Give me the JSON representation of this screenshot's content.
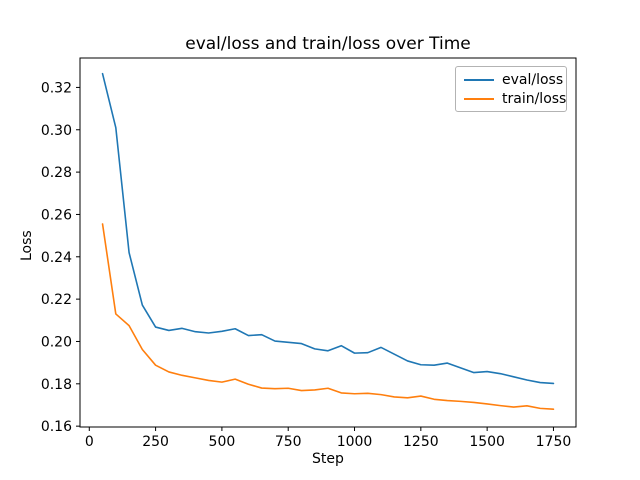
{
  "window": {
    "background": "#ffffff"
  },
  "chart_data": {
    "type": "line",
    "title": "eval/loss and train/loss over Time",
    "xlabel": "Step",
    "ylabel": "Loss",
    "grid": false,
    "legend_position": "upper right",
    "xlim": [
      -35,
      1835
    ],
    "ylim": [
      0.1596,
      0.3339
    ],
    "xticks": [
      0,
      250,
      500,
      750,
      1000,
      1250,
      1500,
      1750
    ],
    "xtick_labels": [
      "0",
      "250",
      "500",
      "750",
      "1000",
      "1250",
      "1500",
      "1750"
    ],
    "yticks": [
      0.16,
      0.18,
      0.2,
      0.22,
      0.24,
      0.26,
      0.28,
      0.3,
      0.32
    ],
    "ytick_labels": [
      "0.16",
      "0.18",
      "0.20",
      "0.22",
      "0.24",
      "0.26",
      "0.28",
      "0.30",
      "0.32"
    ],
    "x": [
      50,
      100,
      150,
      200,
      250,
      300,
      350,
      400,
      450,
      500,
      550,
      600,
      650,
      700,
      750,
      800,
      850,
      900,
      950,
      1000,
      1050,
      1100,
      1150,
      1200,
      1250,
      1300,
      1350,
      1400,
      1450,
      1500,
      1550,
      1600,
      1650,
      1700,
      1750
    ],
    "series": [
      {
        "name": "eval/loss",
        "color": "#1f77b4",
        "values": [
          0.3265,
          0.301,
          0.242,
          0.2172,
          0.2068,
          0.2052,
          0.2062,
          0.2046,
          0.204,
          0.2048,
          0.206,
          0.2028,
          0.2032,
          0.2002,
          0.1996,
          0.199,
          0.1965,
          0.1956,
          0.198,
          0.1945,
          0.1947,
          0.1972,
          0.194,
          0.1908,
          0.189,
          0.1888,
          0.1898,
          0.1875,
          0.1853,
          0.1858,
          0.1848,
          0.1833,
          0.1818,
          0.1806,
          0.1802
        ]
      },
      {
        "name": "train/loss",
        "color": "#ff7f0e",
        "values": [
          0.2555,
          0.213,
          0.2075,
          0.1962,
          0.1888,
          0.1856,
          0.184,
          0.1828,
          0.1816,
          0.1808,
          0.1822,
          0.1798,
          0.178,
          0.1777,
          0.1779,
          0.1768,
          0.1771,
          0.1779,
          0.1757,
          0.1753,
          0.1755,
          0.1749,
          0.1738,
          0.1734,
          0.1742,
          0.1727,
          0.1721,
          0.1717,
          0.1712,
          0.1705,
          0.1697,
          0.169,
          0.1696,
          0.1684,
          0.168
        ]
      }
    ]
  }
}
